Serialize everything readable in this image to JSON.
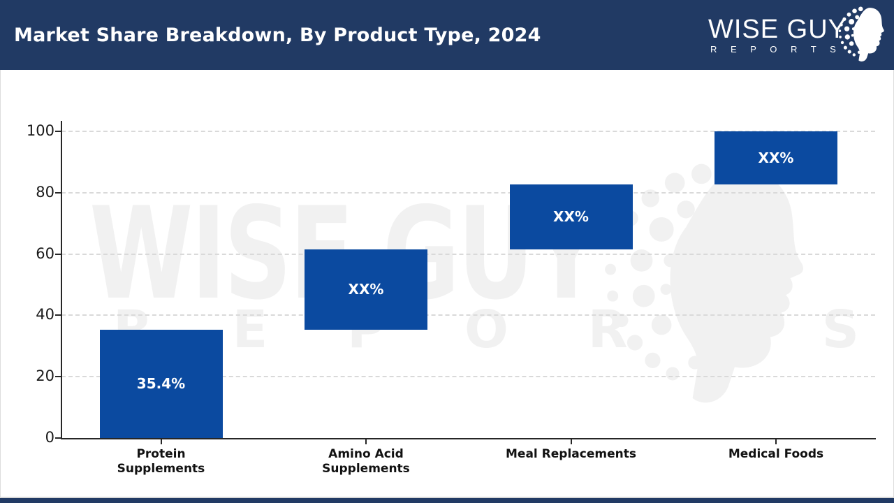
{
  "header": {
    "title": "Market Share Breakdown, By Product Type, 2024",
    "logo": {
      "name": "WISE GUY",
      "sub": "R E P O R T S"
    }
  },
  "watermark": {
    "line1": "WISE GUY",
    "line2": "R E P O R T S"
  },
  "colors": {
    "header_bg": "#213A64",
    "footer_bg": "#213A64",
    "bar": "#0B4AA0",
    "grid": "#D9D9D9",
    "axis": "#262626",
    "tick_text": "#1A1A1A",
    "bar_label_text": "#FFFFFF",
    "watermark_gray": "#F1F1F1"
  },
  "chart_data": {
    "type": "bar",
    "subtype": "floating-segment-waterfall",
    "title": "Market Share Breakdown, By Product Type, 2024",
    "categories": [
      "Protein Supplements",
      "Amino Acid Supplements",
      "Meal Replacements",
      "Medical Foods"
    ],
    "category_lines": [
      [
        "Protein",
        "Supplements"
      ],
      [
        "Amino Acid",
        "Supplements"
      ],
      [
        "Meal Replacements"
      ],
      [
        "Medical Foods"
      ]
    ],
    "segments": [
      {
        "category": "Protein Supplements",
        "start": 0,
        "end": 35.4,
        "label": "35.4%"
      },
      {
        "category": "Amino Acid Supplements",
        "start": 35.4,
        "end": 61.6,
        "label": "XX%"
      },
      {
        "category": "Meal Replacements",
        "start": 61.6,
        "end": 82.8,
        "label": "XX%"
      },
      {
        "category": "Medical Foods",
        "start": 82.8,
        "end": 100,
        "label": "XX%"
      }
    ],
    "ylim": [
      0,
      100
    ],
    "yticks": [
      0,
      20,
      40,
      60,
      80,
      100
    ],
    "xlabel": "",
    "ylabel": "",
    "grid": "horizontal-dashed",
    "legend": "none"
  }
}
